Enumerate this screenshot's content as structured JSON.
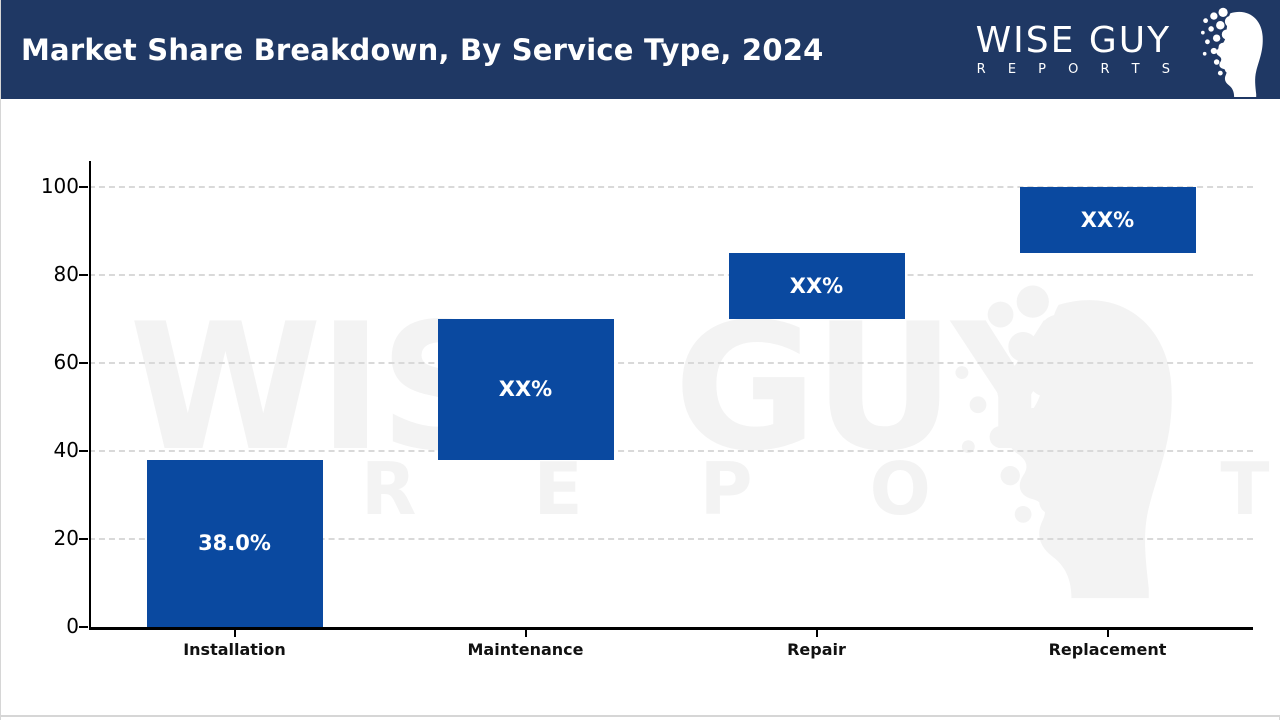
{
  "header": {
    "bg": "#1f3864",
    "title": "Market Share Breakdown, By Service Type, 2024",
    "logo": {
      "line1": "WISE GUY",
      "line2": "R E P O R T S"
    }
  },
  "watermark": {
    "line1": "WISE GUY",
    "line2": "R E P O R T S",
    "color": "#f3f3f3"
  },
  "chart_data": {
    "type": "bar",
    "subtype": "waterfall",
    "title": "Market Share Breakdown, By Service Type, 2024",
    "categories": [
      "Installation",
      "Maintenance",
      "Repair",
      "Replacement"
    ],
    "bars": [
      {
        "category": "Installation",
        "start": 0,
        "end": 38,
        "label": "38.0%"
      },
      {
        "category": "Maintenance",
        "start": 38,
        "end": 70,
        "label": "XX%"
      },
      {
        "category": "Repair",
        "start": 70,
        "end": 85,
        "label": "XX%"
      },
      {
        "category": "Replacement",
        "start": 85,
        "end": 100,
        "label": "XX%"
      }
    ],
    "values_visible": [
      38.0,
      null,
      null,
      null
    ],
    "xlabel": "",
    "ylabel": "",
    "ylim": [
      0,
      100
    ],
    "yticks": [
      0,
      20,
      40,
      60,
      80,
      100
    ],
    "grid": "horizontal-dashed",
    "legend": "none",
    "bar_color": "#0a49a0",
    "bar_label_color": "#ffffff",
    "grid_color": "#d9d9d9",
    "axis_color": "#000000",
    "tick_label_color": "#000000"
  }
}
